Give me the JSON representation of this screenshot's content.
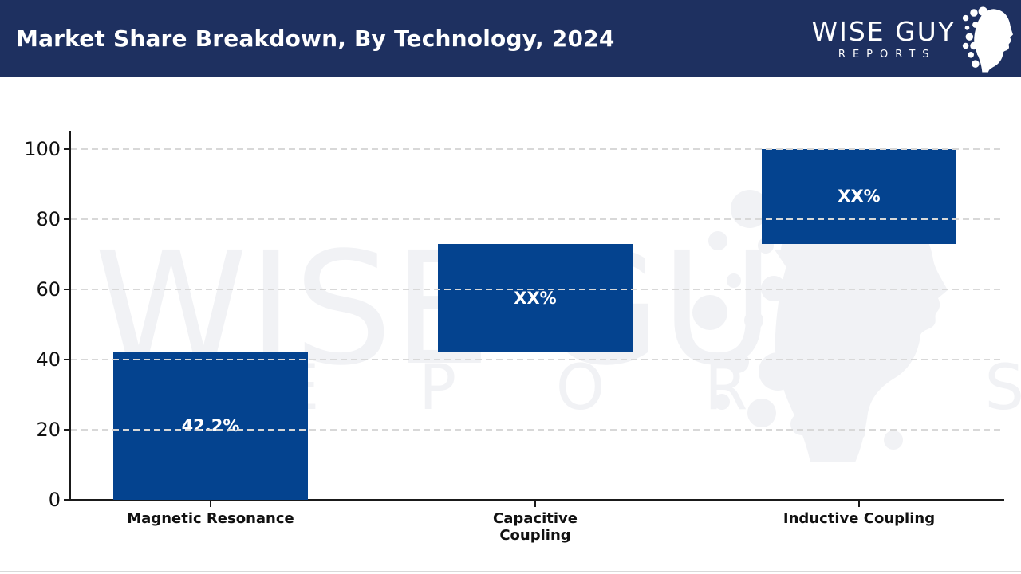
{
  "header": {
    "title": "Market Share Breakdown, By Technology, 2024",
    "logo": {
      "line1": "WISE GUY",
      "line2": "REPORTS"
    },
    "bg_color": "#1e3060"
  },
  "watermark": {
    "line1": "WISE GUY",
    "line2": "R E P O R T S"
  },
  "chart_data": {
    "type": "bar",
    "subtype": "floating-segment (waterfall-style market share breakdown)",
    "title": "Market Share Breakdown, By Technology, 2024",
    "categories": [
      "Magnetic Resonance",
      "Capacitive\nCoupling",
      "Inductive Coupling"
    ],
    "ranges": [
      [
        0,
        42.2
      ],
      [
        42.2,
        73.0
      ],
      [
        73.0,
        100.0
      ]
    ],
    "segment_sizes_estimated": [
      42.2,
      30.8,
      27.0
    ],
    "bar_value_labels": [
      "42.2%",
      "XX%",
      "XX%"
    ],
    "y_ticks": [
      0,
      20,
      40,
      60,
      80,
      100
    ],
    "ylim": [
      0,
      105
    ],
    "xlabel": "",
    "ylabel": "",
    "grid": "horizontal dashed, drawn over bars",
    "legend": "none",
    "bar_color": "#04438f",
    "gridline_color": "#d8d8d8",
    "axis_color": "#1a1a1a"
  }
}
